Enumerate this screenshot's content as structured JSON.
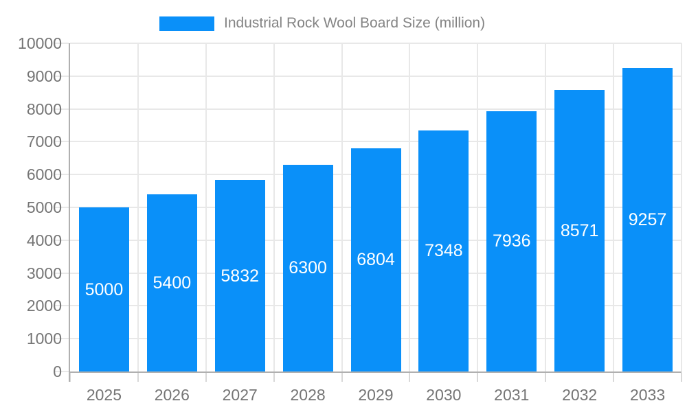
{
  "legend": {
    "label": "Industrial Rock Wool Board Size (million)"
  },
  "chart_data": {
    "type": "bar",
    "title": "",
    "xlabel": "",
    "ylabel": "",
    "legend_position": "top",
    "grid": true,
    "categories": [
      "2025",
      "2026",
      "2027",
      "2028",
      "2029",
      "2030",
      "2031",
      "2032",
      "2033"
    ],
    "series": [
      {
        "name": "Industrial Rock Wool Board Size (million)",
        "values": [
          5000,
          5400,
          5832,
          6300,
          6804,
          7348,
          7936,
          8571,
          9257
        ]
      }
    ],
    "ylim": [
      0,
      10000
    ],
    "ytick_step": 1000,
    "yticks": [
      0,
      1000,
      2000,
      3000,
      4000,
      5000,
      6000,
      7000,
      8000,
      9000,
      10000
    ],
    "colors": {
      "bar": "#0a90f9",
      "value_label": "#ffffff",
      "axis_label": "#757575",
      "legend_label": "#848484",
      "grid_line": "#e8e8e8",
      "axis_line": "#b0b0b0",
      "tick": "#d8d8d8"
    }
  }
}
